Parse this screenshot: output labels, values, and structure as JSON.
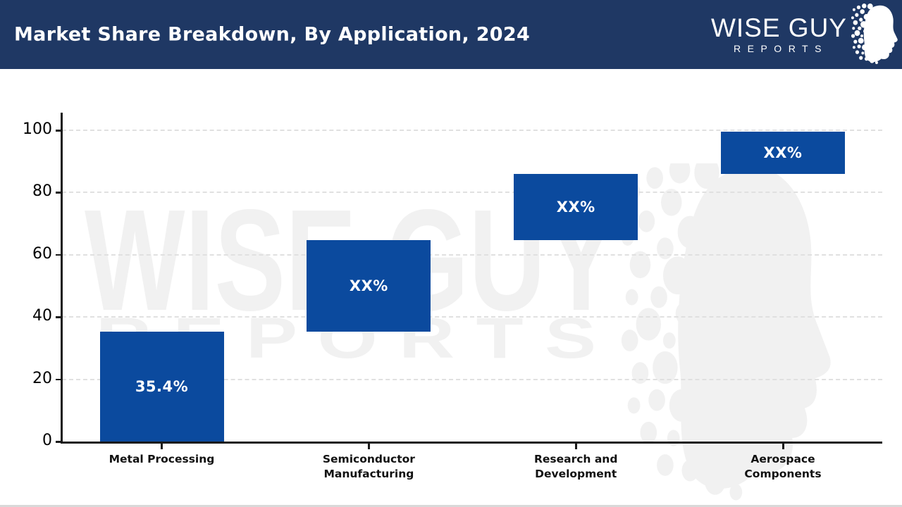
{
  "header": {
    "title": "Market Share Breakdown, By Application, 2024",
    "bg_color": "#1f3864",
    "logo": {
      "brand": "WISE GUY",
      "brand_sub": "REPORTS"
    }
  },
  "watermark": {
    "brand": "WISE GUY",
    "brand_sub": "R E P O R T S"
  },
  "chart_data": {
    "type": "bar",
    "subtype": "waterfall-floating-segments",
    "title": "Market Share Breakdown, By Application, 2024",
    "categories": [
      "Metal Processing",
      "Semiconductor Manufacturing",
      "Research and Development",
      "Aerospace Components"
    ],
    "series": [
      {
        "name": "Market share (%)",
        "segments": [
          {
            "category": "Metal Processing",
            "start": 0,
            "end": 35.4,
            "label": "35.4%"
          },
          {
            "category": "Semiconductor Manufacturing",
            "start": 35.4,
            "end": 64.8,
            "label": "XX%"
          },
          {
            "category": "Research and Development",
            "start": 64.8,
            "end": 85.9,
            "label": "XX%"
          },
          {
            "category": "Aerospace Components",
            "start": 85.9,
            "end": 99.5,
            "label": "XX%"
          }
        ]
      }
    ],
    "y_ticks": [
      0,
      20,
      40,
      60,
      80,
      100
    ],
    "ylim": [
      0,
      105
    ],
    "xlabel": "",
    "ylabel": "",
    "grid": "horizontal-dashed",
    "legend": "none",
    "bar_color": "#0b4a9e",
    "value_label_color": "#ffffff",
    "axis_color": "#1a1a1a",
    "grid_color": "#e0e0e0",
    "tick_label_color": "#000000"
  }
}
